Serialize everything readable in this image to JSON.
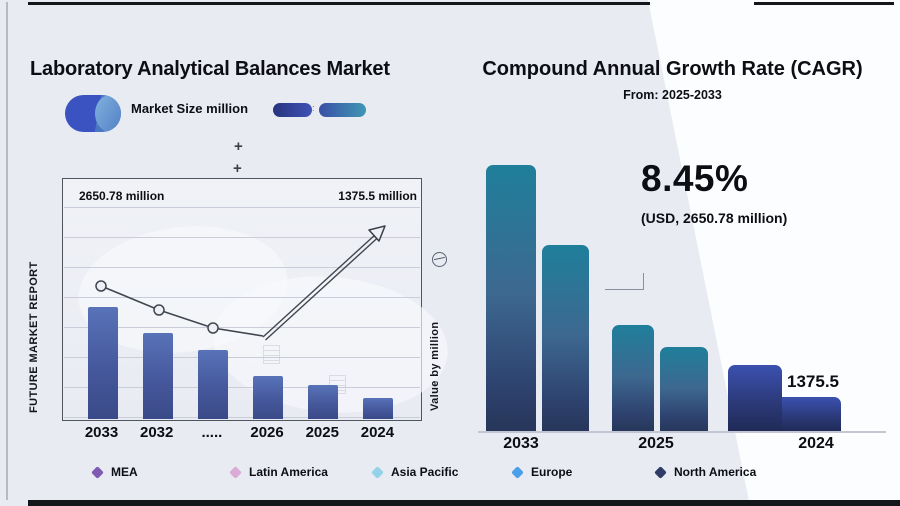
{
  "left_section": {
    "title": "Laboratory Analytical Balances Market",
    "legend_label": "Market Size million",
    "pill_separator": ":",
    "plus_sign": "+",
    "annotation_start": "2650.78 million",
    "annotation_end": "1375.5 million",
    "watermark_vertical": "FUTURE MARKET REPORT",
    "axis_vertical": "Value by million"
  },
  "right_section": {
    "title": "Compound Annual Growth Rate (CAGR)",
    "subtitle": "From: 2025-2033",
    "cagr_value": "8.45%",
    "cagr_note": "(USD, 2650.78 million)",
    "value_label": "1375.5"
  },
  "legend": [
    {
      "label": "MEA",
      "color": "#7e5ab0"
    },
    {
      "label": "Latin America",
      "color": "#d9abd6"
    },
    {
      "label": "Asia Pacific",
      "color": "#94d2e8"
    },
    {
      "label": "Europe",
      "color": "#4aa0e8"
    },
    {
      "label": "North America",
      "color": "#2f3c68"
    }
  ],
  "colors": {
    "background": "#e9ebf2",
    "bar_left_top": "#5873b8",
    "bar_left_bottom": "#3a4a88",
    "bar_teal_top": "#1f7f9b",
    "bar_teal_bottom": "#273659",
    "bar_blue_top": "#3b51b0",
    "bar_blue_bottom": "#1f2a55"
  },
  "chart_data": [
    {
      "type": "bar",
      "title": "Market Size million",
      "categories": [
        "2033",
        "2032",
        ".....",
        "2026",
        "2025",
        "2024"
      ],
      "values": [
        100,
        77,
        62,
        38,
        30,
        19
      ],
      "value_scale": "relative, no numeric axis shown",
      "annotations": [
        "2650.78 million",
        "1375.5 million"
      ],
      "ylabel": "Value by million",
      "side_label": "FUTURE MARKET REPORT",
      "grid": true,
      "overlay": "trend line with 3 circle markers descending over 2033-2032-....., then hand-drawn arrow rising to top right toward 1375.5 million"
    },
    {
      "type": "bar",
      "title": "Compound Annual Growth Rate (CAGR)",
      "subtitle": "From: 2025-2033",
      "categories": [
        "2033",
        "2025",
        "2024"
      ],
      "series": [
        {
          "name": "bar-left",
          "values": [
            100,
            40,
            25
          ]
        },
        {
          "name": "bar-right",
          "values": [
            70,
            32,
            13
          ]
        }
      ],
      "value_scale": "relative, no numeric axis shown",
      "annotations": [
        "8.45%",
        "(USD, 2650.78 million)",
        "1375.5"
      ],
      "grid": false
    }
  ]
}
